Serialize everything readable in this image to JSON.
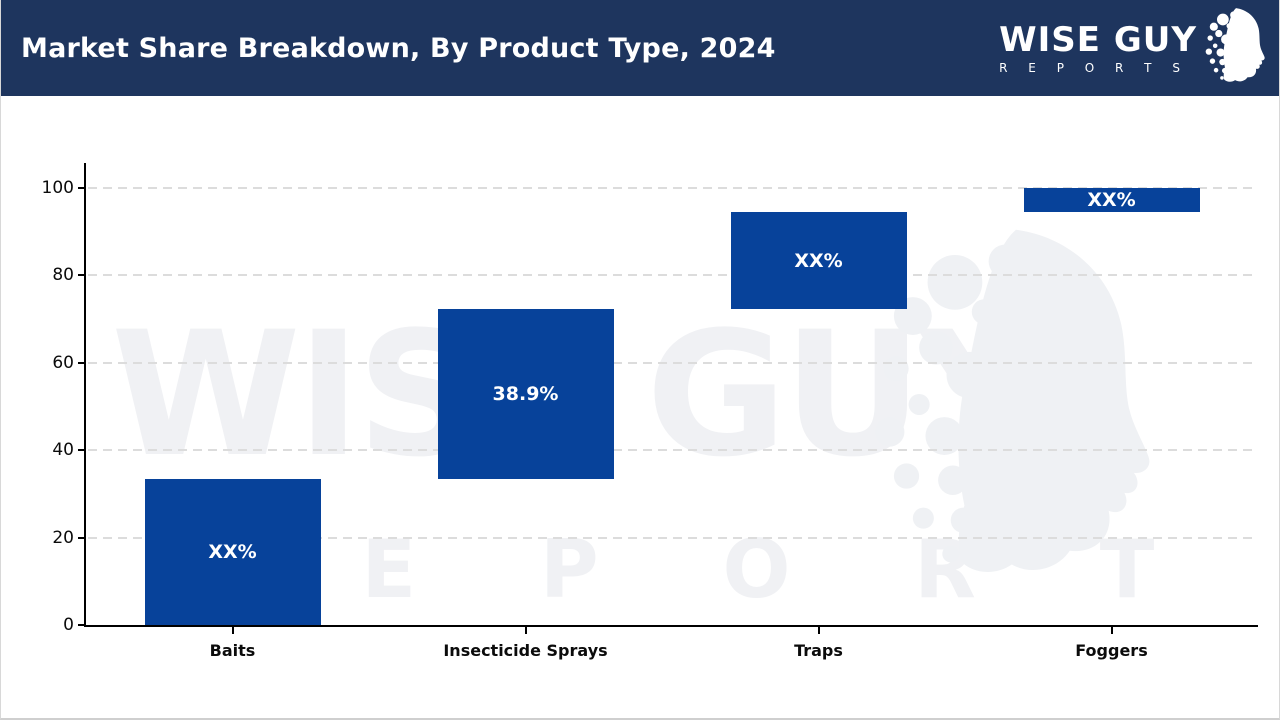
{
  "header": {
    "title": "Market Share Breakdown, By Product Type, 2024",
    "background": "#1e355e",
    "logo": {
      "line1": "WISE GUY",
      "line2": "R E P O R T S"
    }
  },
  "watermark": {
    "line1": "WISE GUY",
    "line2": "R E P O R T S"
  },
  "colors": {
    "bar": "#07429a",
    "header_background": "#1e355e",
    "gridline": "#dcdcdc",
    "axis": "#000000",
    "bar_label_text": "#ffffff",
    "watermark": "#f0f1f4"
  },
  "chart_data": {
    "type": "bar",
    "variant": "waterfall",
    "title": "Market Share Breakdown, By Product Type, 2024",
    "categories": [
      "Baits",
      "Insecticide Sprays",
      "Traps",
      "Foggers"
    ],
    "segments": [
      {
        "category": "Baits",
        "start": 0,
        "end": 33.3,
        "value": 33.3,
        "value_label": "XX%"
      },
      {
        "category": "Insecticide Sprays",
        "start": 33.3,
        "end": 72.2,
        "value": 38.9,
        "value_label": "38.9%"
      },
      {
        "category": "Traps",
        "start": 72.2,
        "end": 94.4,
        "value": 22.2,
        "value_label": "XX%"
      },
      {
        "category": "Foggers",
        "start": 94.4,
        "end": 100,
        "value": 5.6,
        "value_label": "XX%"
      }
    ],
    "y_ticks": [
      0,
      20,
      40,
      60,
      80,
      100
    ],
    "ylim": [
      0,
      105.6
    ],
    "xlabel": "",
    "ylabel": "",
    "grid": "horizontal dashed",
    "legend": "none",
    "bar_color": "#07429a"
  }
}
